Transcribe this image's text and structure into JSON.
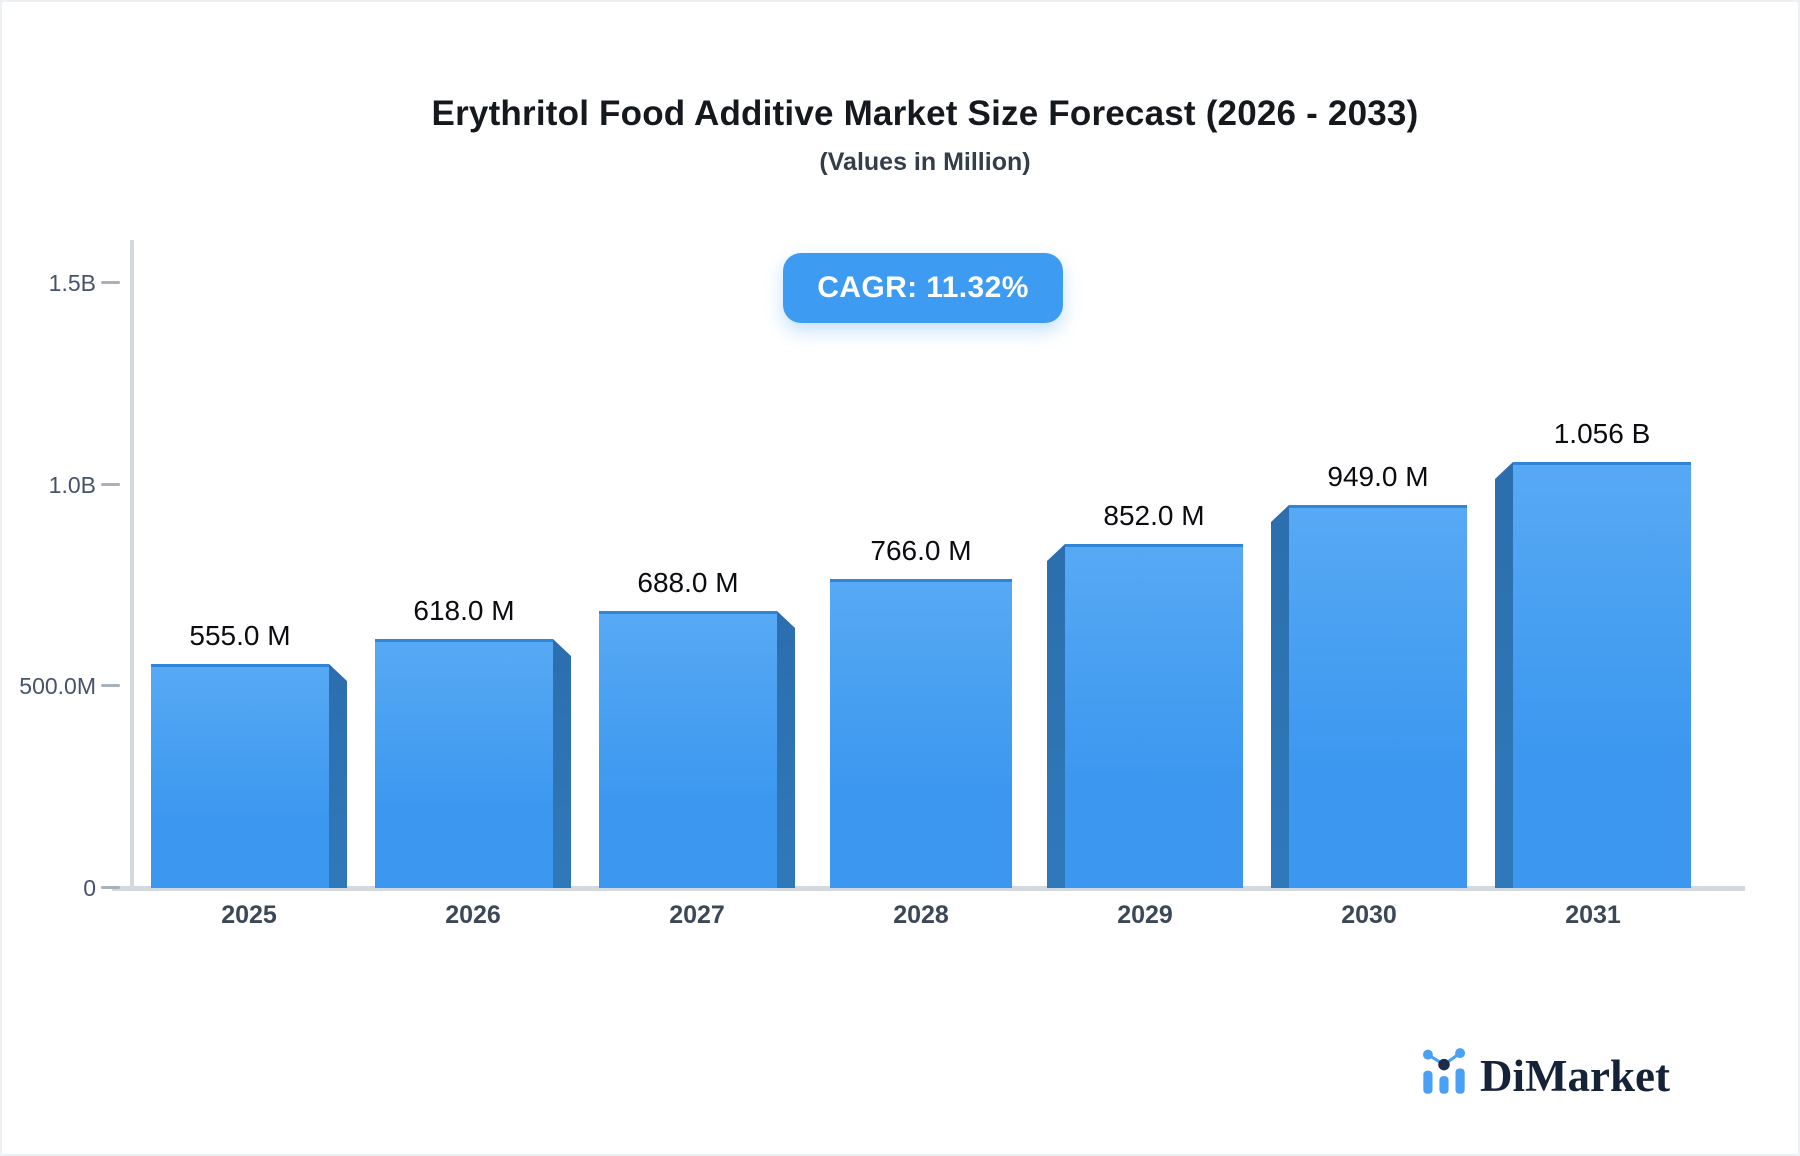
{
  "title": "Erythritol Food Additive Market Size Forecast (2026 - 2033)",
  "subtitle": "(Values in Million)",
  "badge": {
    "label": "CAGR: 11.32%"
  },
  "chart_data": {
    "type": "bar",
    "title": "Erythritol Food Additive Market Size Forecast (2026 - 2033)",
    "subtitle": "(Values in Million)",
    "cagr_percent": 11.32,
    "categories": [
      "2025",
      "2026",
      "2027",
      "2028",
      "2029",
      "2030",
      "2031"
    ],
    "values": [
      555,
      618,
      688,
      766,
      852,
      949,
      1056
    ],
    "value_unit": "million",
    "value_labels": [
      "555.0 M",
      "618.0 M",
      "688.0 M",
      "766.0 M",
      "852.0 M",
      "949.0 M",
      "1.056 B"
    ],
    "xlabel": "",
    "ylabel": "",
    "ylim": [
      0,
      1500
    ],
    "yticks": [
      {
        "value": 0,
        "label": "0"
      },
      {
        "value": 500,
        "label": "500.0M"
      },
      {
        "value": 1000,
        "label": "1.0B"
      },
      {
        "value": 1500,
        "label": "1.5B"
      }
    ],
    "grid": false,
    "legend": "none"
  },
  "logo": {
    "text": "DiMarket"
  },
  "colors": {
    "bar_face_top": "#57a9f4",
    "bar_face_bottom": "#3b97ef",
    "bar_top_edge": "#2f86d9",
    "bar_side_face": "#2c6ead",
    "badge_background": "#3d9cf1",
    "axis_line": "#d4d9de",
    "tick_text": "#47536b",
    "category_text": "#3c4858",
    "value_text": "#0a0c10",
    "logo_navy": "#152238",
    "logo_blue": "#4aa0f5"
  }
}
